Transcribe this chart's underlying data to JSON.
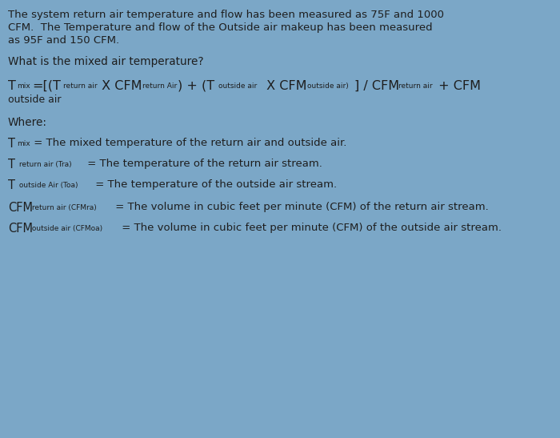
{
  "background_color": "#7ba7c7",
  "text_color": "#1e1e1e",
  "figsize": [
    7.0,
    5.47
  ],
  "dpi": 100,
  "para1_lines": [
    "The system return air temperature and flow has been measured as 75F and 1000",
    "CFM.  The Temperature and flow of the Outside air makeup has been measured",
    "as 95F and 150 CFM."
  ],
  "para2": "What is the mixed air temperature?",
  "where": "Where:",
  "def1_suffix": " = The mixed temperature of the return air and outside air.",
  "def2_suffix": " = The temperature of the return air stream.",
  "def3_suffix": " = The temperature of the outside air stream.",
  "def4_suffix": " = The volume in cubic feet per minute (CFM) of the return air stream.",
  "def5_suffix": " = The volume in cubic feet per minute (CFM) of the outside air stream."
}
